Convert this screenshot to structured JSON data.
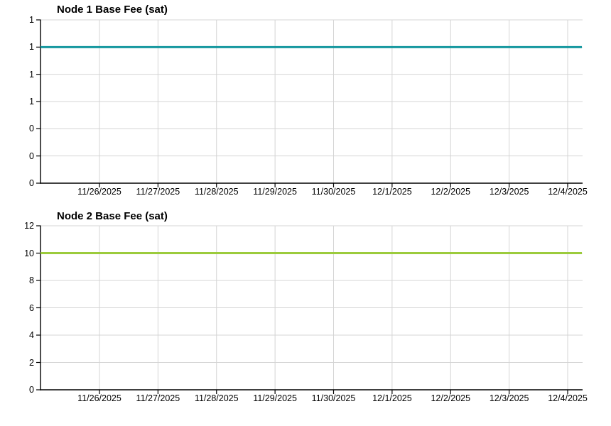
{
  "colors": {
    "background": "#FFFFFF",
    "grid": "#D4D4D4",
    "axis": "#000000",
    "node1_line": "#16989F",
    "node2_line": "#9CCB3C",
    "label_text": "#000000"
  },
  "chart_data": [
    {
      "type": "line",
      "title": "Node 1 Base Fee (sat)",
      "xlabel": "",
      "ylabel": "",
      "x": [
        "11/26/2025",
        "11/27/2025",
        "11/28/2025",
        "11/29/2025",
        "11/30/2025",
        "12/1/2025",
        "12/2/2025",
        "12/3/2025",
        "12/4/2025"
      ],
      "series": [
        {
          "name": "Node 1 Base Fee",
          "color": "#16989F",
          "values": [
            1,
            1,
            1,
            1,
            1,
            1,
            1,
            1,
            1
          ]
        }
      ],
      "ylim": [
        0,
        1.2
      ],
      "y_tick_labels": [
        "1",
        "1",
        "1",
        "1",
        "0",
        "0",
        "0"
      ],
      "grid": true,
      "legend_position": "none"
    },
    {
      "type": "line",
      "title": "Node 2 Base Fee (sat)",
      "xlabel": "",
      "ylabel": "",
      "x": [
        "11/26/2025",
        "11/27/2025",
        "11/28/2025",
        "11/29/2025",
        "11/30/2025",
        "12/1/2025",
        "12/2/2025",
        "12/3/2025",
        "12/4/2025"
      ],
      "series": [
        {
          "name": "Node 2 Base Fee",
          "color": "#9CCB3C",
          "values": [
            10,
            10,
            10,
            10,
            10,
            10,
            10,
            10,
            10
          ]
        }
      ],
      "ylim": [
        0,
        12
      ],
      "y_tick_labels": [
        "12",
        "10",
        "8",
        "6",
        "4",
        "2",
        "0"
      ],
      "grid": true,
      "legend_position": "none"
    }
  ]
}
